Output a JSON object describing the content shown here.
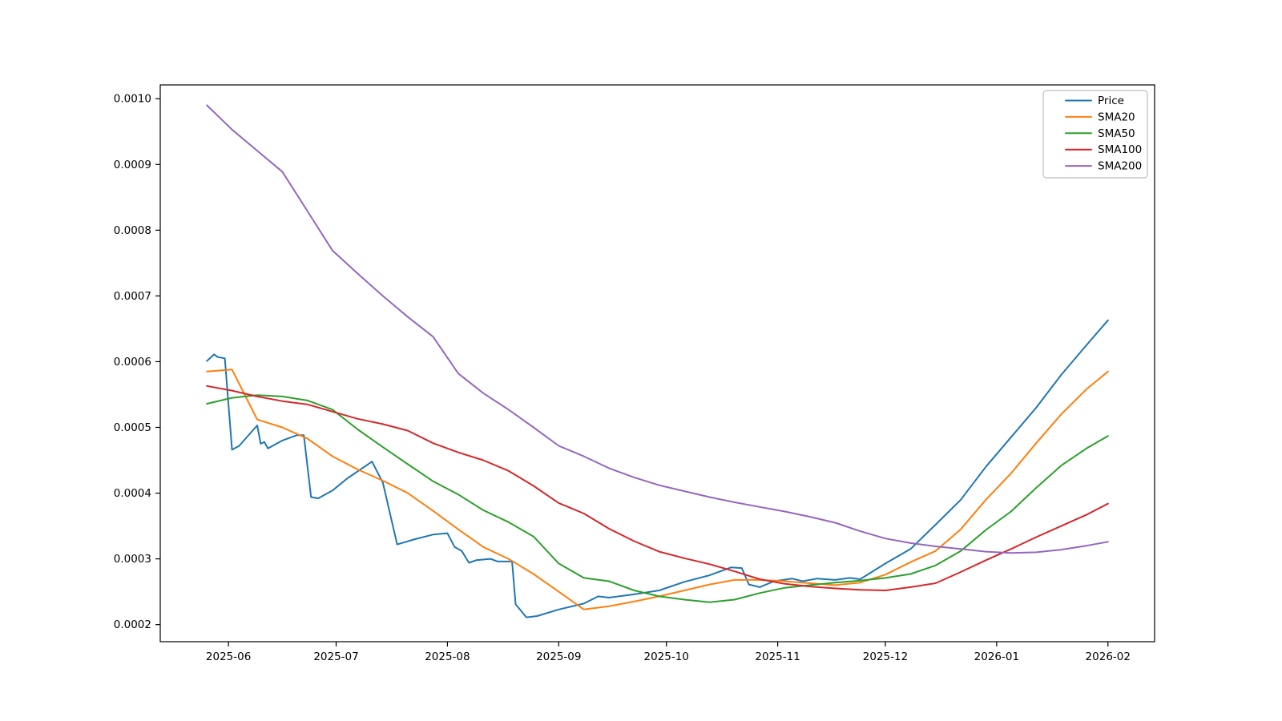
{
  "figure": {
    "background": "#ffffff"
  },
  "chart_data": {
    "type": "line",
    "title": "",
    "xlabel": "",
    "ylabel": "",
    "grid": false,
    "xlim": [
      "2025-05-13",
      "2026-02-14"
    ],
    "ylim": [
      0.000174,
      0.001021
    ],
    "x_ticks": [
      {
        "date": "2025-06-01",
        "label": "2025-06"
      },
      {
        "date": "2025-07-01",
        "label": "2025-07"
      },
      {
        "date": "2025-08-01",
        "label": "2025-08"
      },
      {
        "date": "2025-09-01",
        "label": "2025-09"
      },
      {
        "date": "2025-10-01",
        "label": "2025-10"
      },
      {
        "date": "2025-11-01",
        "label": "2025-11"
      },
      {
        "date": "2025-12-01",
        "label": "2025-12"
      },
      {
        "date": "2026-01-01",
        "label": "2026-01"
      },
      {
        "date": "2026-02-01",
        "label": "2026-02"
      }
    ],
    "y_ticks": [
      {
        "value": 0.0002,
        "label": "0.0002"
      },
      {
        "value": 0.0003,
        "label": "0.0003"
      },
      {
        "value": 0.0004,
        "label": "0.0004"
      },
      {
        "value": 0.0005,
        "label": "0.0005"
      },
      {
        "value": 0.0006,
        "label": "0.0006"
      },
      {
        "value": 0.0007,
        "label": "0.0007"
      },
      {
        "value": 0.0008,
        "label": "0.0008"
      },
      {
        "value": 0.0009,
        "label": "0.0009"
      },
      {
        "value": 0.001,
        "label": "0.0010"
      }
    ],
    "legend": {
      "position": "upper right",
      "entries": [
        "Price",
        "SMA20",
        "SMA50",
        "SMA100",
        "SMA200"
      ]
    },
    "series": [
      {
        "name": "Price",
        "color": "#1f77b4",
        "dates": [
          "2025-05-26",
          "2025-05-28",
          "2025-05-29",
          "2025-05-31",
          "2025-06-02",
          "2025-06-04",
          "2025-06-09",
          "2025-06-10",
          "2025-06-11",
          "2025-06-12",
          "2025-06-16",
          "2025-06-20",
          "2025-06-22",
          "2025-06-24",
          "2025-06-26",
          "2025-06-30",
          "2025-07-04",
          "2025-07-11",
          "2025-07-14",
          "2025-07-18",
          "2025-07-23",
          "2025-07-28",
          "2025-08-01",
          "2025-08-03",
          "2025-08-05",
          "2025-08-07",
          "2025-08-09",
          "2025-08-13",
          "2025-08-15",
          "2025-08-19",
          "2025-08-20",
          "2025-08-23",
          "2025-08-26",
          "2025-09-01",
          "2025-09-08",
          "2025-09-12",
          "2025-09-15",
          "2025-09-22",
          "2025-09-29",
          "2025-10-06",
          "2025-10-13",
          "2025-10-19",
          "2025-10-22",
          "2025-10-24",
          "2025-10-27",
          "2025-10-31",
          "2025-11-05",
          "2025-11-08",
          "2025-11-12",
          "2025-11-17",
          "2025-11-21",
          "2025-11-24",
          "2025-12-01",
          "2025-12-08",
          "2025-12-15",
          "2025-12-22",
          "2025-12-29",
          "2026-01-05",
          "2026-01-12",
          "2026-01-19",
          "2026-01-26",
          "2026-02-01"
        ],
        "values": [
          0.000601,
          0.000611,
          0.000607,
          0.000605,
          0.000466,
          0.000472,
          0.000503,
          0.000475,
          0.000478,
          0.000468,
          0.00048,
          0.000488,
          0.000488,
          0.000394,
          0.000392,
          0.000404,
          0.000422,
          0.000448,
          0.000416,
          0.000322,
          0.00033,
          0.000337,
          0.000339,
          0.000318,
          0.000312,
          0.000294,
          0.000298,
          0.0003,
          0.000296,
          0.000296,
          0.000231,
          0.000211,
          0.000213,
          0.000223,
          0.000232,
          0.000243,
          0.000241,
          0.000246,
          0.000252,
          0.000265,
          0.000275,
          0.000287,
          0.000286,
          0.000261,
          0.000257,
          0.000266,
          0.00027,
          0.000266,
          0.00027,
          0.000268,
          0.000271,
          0.000269,
          0.000293,
          0.000315,
          0.000352,
          0.00039,
          0.00044,
          0.000485,
          0.00053,
          0.00058,
          0.000625,
          0.000663
        ]
      },
      {
        "name": "SMA20",
        "color": "#ff7f0e",
        "dates": [
          "2025-05-26",
          "2025-06-02",
          "2025-06-09",
          "2025-06-16",
          "2025-06-23",
          "2025-06-30",
          "2025-07-07",
          "2025-07-14",
          "2025-07-21",
          "2025-07-28",
          "2025-08-04",
          "2025-08-11",
          "2025-08-18",
          "2025-08-25",
          "2025-09-01",
          "2025-09-08",
          "2025-09-15",
          "2025-09-22",
          "2025-09-29",
          "2025-10-06",
          "2025-10-13",
          "2025-10-20",
          "2025-10-27",
          "2025-11-03",
          "2025-11-10",
          "2025-11-17",
          "2025-11-24",
          "2025-12-01",
          "2025-12-08",
          "2025-12-15",
          "2025-12-22",
          "2025-12-29",
          "2026-01-05",
          "2026-01-12",
          "2026-01-19",
          "2026-01-26",
          "2026-02-01"
        ],
        "values": [
          0.000585,
          0.000588,
          0.000512,
          0.0005,
          0.000483,
          0.000456,
          0.000436,
          0.000419,
          0.0004,
          0.000373,
          0.000345,
          0.000318,
          0.0003,
          0.000277,
          0.00025,
          0.000223,
          0.000228,
          0.000235,
          0.000243,
          0.000252,
          0.000261,
          0.000268,
          0.000268,
          0.000266,
          0.000263,
          0.00026,
          0.000264,
          0.000276,
          0.000295,
          0.000312,
          0.000345,
          0.00039,
          0.00043,
          0.000476,
          0.00052,
          0.000558,
          0.000585
        ]
      },
      {
        "name": "SMA50",
        "color": "#2ca02c",
        "dates": [
          "2025-05-26",
          "2025-06-02",
          "2025-06-09",
          "2025-06-16",
          "2025-06-23",
          "2025-06-30",
          "2025-07-07",
          "2025-07-14",
          "2025-07-21",
          "2025-07-28",
          "2025-08-04",
          "2025-08-11",
          "2025-08-18",
          "2025-08-25",
          "2025-09-01",
          "2025-09-08",
          "2025-09-15",
          "2025-09-22",
          "2025-09-29",
          "2025-10-06",
          "2025-10-13",
          "2025-10-20",
          "2025-10-27",
          "2025-11-03",
          "2025-11-10",
          "2025-11-17",
          "2025-11-24",
          "2025-12-01",
          "2025-12-08",
          "2025-12-15",
          "2025-12-22",
          "2025-12-29",
          "2026-01-05",
          "2026-01-12",
          "2026-01-19",
          "2026-01-26",
          "2026-02-01"
        ],
        "values": [
          0.000536,
          0.000545,
          0.000549,
          0.000547,
          0.000541,
          0.000527,
          0.000497,
          0.00047,
          0.000444,
          0.000418,
          0.000398,
          0.000374,
          0.000356,
          0.000334,
          0.000293,
          0.000271,
          0.000266,
          0.000252,
          0.000243,
          0.000238,
          0.000234,
          0.000238,
          0.000248,
          0.000256,
          0.00026,
          0.000264,
          0.000267,
          0.000271,
          0.000277,
          0.00029,
          0.000312,
          0.000344,
          0.000372,
          0.000408,
          0.000442,
          0.000468,
          0.000487
        ]
      },
      {
        "name": "SMA100",
        "color": "#d62728",
        "dates": [
          "2025-05-26",
          "2025-06-02",
          "2025-06-09",
          "2025-06-16",
          "2025-06-23",
          "2025-06-30",
          "2025-07-07",
          "2025-07-14",
          "2025-07-21",
          "2025-07-28",
          "2025-08-04",
          "2025-08-11",
          "2025-08-18",
          "2025-08-25",
          "2025-09-01",
          "2025-09-08",
          "2025-09-15",
          "2025-09-22",
          "2025-09-29",
          "2025-10-06",
          "2025-10-13",
          "2025-10-20",
          "2025-10-27",
          "2025-11-03",
          "2025-11-10",
          "2025-11-17",
          "2025-11-24",
          "2025-12-01",
          "2025-12-08",
          "2025-12-15",
          "2025-12-22",
          "2025-12-29",
          "2026-01-05",
          "2026-01-12",
          "2026-01-19",
          "2026-01-26",
          "2026-02-01"
        ],
        "values": [
          0.000563,
          0.000556,
          0.000547,
          0.00054,
          0.000535,
          0.000524,
          0.000513,
          0.000505,
          0.000495,
          0.000476,
          0.000462,
          0.00045,
          0.000434,
          0.000411,
          0.000385,
          0.000369,
          0.000346,
          0.000327,
          0.000311,
          0.000301,
          0.000292,
          0.000281,
          0.000269,
          0.000262,
          0.000258,
          0.000255,
          0.000253,
          0.000252,
          0.000257,
          0.000263,
          0.00028,
          0.000298,
          0.000315,
          0.000333,
          0.00035,
          0.000367,
          0.000384
        ]
      },
      {
        "name": "SMA200",
        "color": "#9467bd",
        "dates": [
          "2025-05-26",
          "2025-06-02",
          "2025-06-09",
          "2025-06-16",
          "2025-06-23",
          "2025-06-30",
          "2025-07-07",
          "2025-07-14",
          "2025-07-21",
          "2025-07-28",
          "2025-08-04",
          "2025-08-11",
          "2025-08-18",
          "2025-08-25",
          "2025-09-01",
          "2025-09-08",
          "2025-09-15",
          "2025-09-22",
          "2025-09-29",
          "2025-10-06",
          "2025-10-13",
          "2025-10-20",
          "2025-10-27",
          "2025-11-03",
          "2025-11-10",
          "2025-11-17",
          "2025-11-24",
          "2025-12-01",
          "2025-12-08",
          "2025-12-15",
          "2025-12-22",
          "2025-12-29",
          "2026-01-05",
          "2026-01-12",
          "2026-01-19",
          "2026-01-26",
          "2026-02-01"
        ],
        "values": [
          0.00099,
          0.000953,
          0.000921,
          0.000889,
          0.000829,
          0.000769,
          0.000734,
          0.0007,
          0.000668,
          0.000638,
          0.000582,
          0.000552,
          0.000527,
          0.0005,
          0.000472,
          0.000456,
          0.000438,
          0.000424,
          0.000412,
          0.000403,
          0.000394,
          0.000386,
          0.000379,
          0.000372,
          0.000364,
          0.000355,
          0.000342,
          0.000331,
          0.000324,
          0.000319,
          0.000315,
          0.000311,
          0.000309,
          0.00031,
          0.000314,
          0.00032,
          0.000326
        ]
      }
    ],
    "style": {
      "spine_color": "#000000",
      "tick_color": "#000000",
      "legend_border_color": "#b0b0b0",
      "legend_background": "#ffffff"
    }
  }
}
